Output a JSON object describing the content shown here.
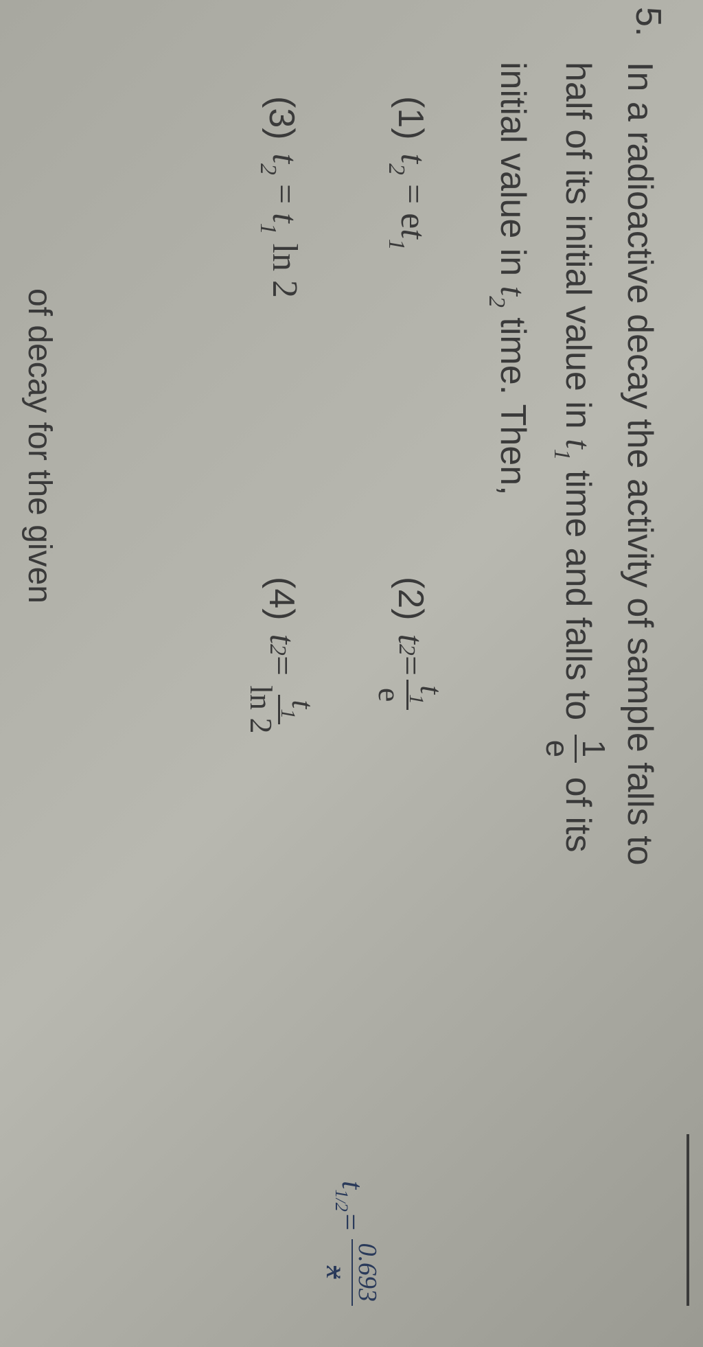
{
  "question": {
    "number": "5.",
    "line1_part1": "In a radioactive decay the activity of sample falls to",
    "line2_part1": "half of its initial value in ",
    "line2_var": "t",
    "line2_sub": "1",
    "line2_part2": " time and falls to ",
    "frac_num": "1",
    "frac_den": "e",
    "line2_part3": " of its",
    "line3_part1": "initial value in ",
    "line3_var": "t",
    "line3_sub": "2",
    "line3_part2": " time. Then,"
  },
  "options": {
    "opt1": {
      "label": "(1)",
      "lhs_var": "t",
      "lhs_sub": "2",
      "eq": " = e",
      "rhs_var": "t",
      "rhs_sub": "1"
    },
    "opt2": {
      "label": "(2)",
      "lhs_var": "t",
      "lhs_sub": "2",
      "eq": " = ",
      "frac_num_var": "t",
      "frac_num_sub": "1",
      "frac_den": "e"
    },
    "opt3": {
      "label": "(3)",
      "lhs_var": "t",
      "lhs_sub": "2",
      "eq": " = ",
      "rhs_var": "t",
      "rhs_sub": "1",
      "rhs_text": "ln 2"
    },
    "opt4": {
      "label": "(4)",
      "lhs_var": "t",
      "lhs_sub": "2",
      "eq": " = ",
      "frac_num_var": "t",
      "frac_num_sub": "1",
      "frac_den": "ln 2"
    }
  },
  "handwriting": {
    "lhs_var": "t",
    "lhs_sub1": "1",
    "lhs_sub2": "2",
    "eq": " = ",
    "num": "0.693",
    "den": "x"
  },
  "footer": "of decay for the given",
  "colors": {
    "background": "#a8a8a0",
    "text": "#3a3a3a",
    "handwriting": "#2a3a5a"
  }
}
